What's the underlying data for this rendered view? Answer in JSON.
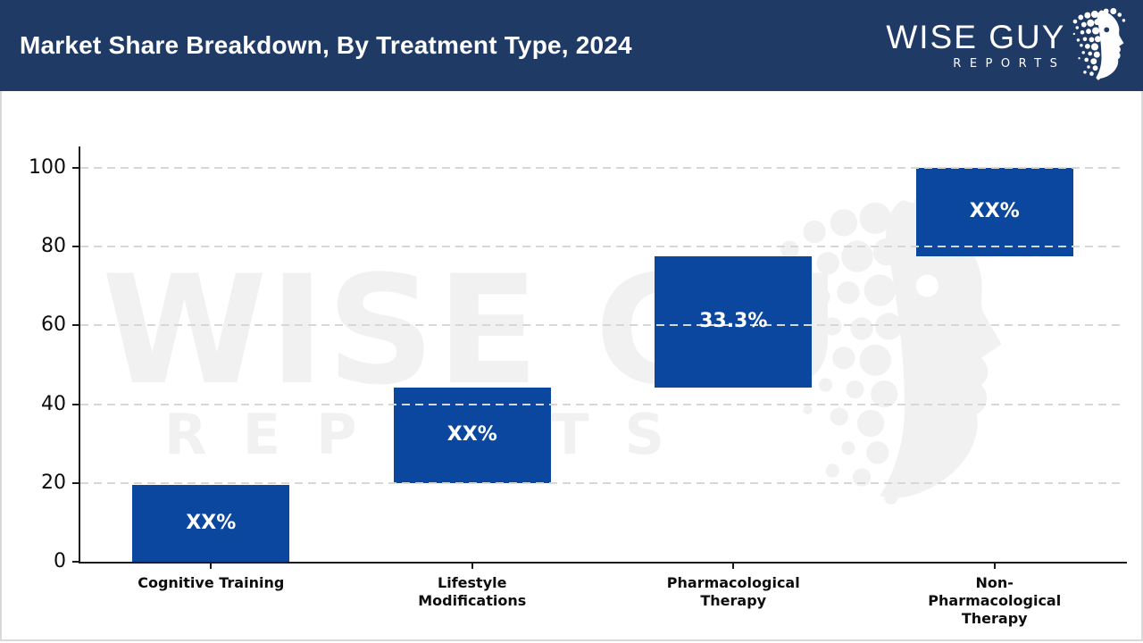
{
  "header": {
    "title": "Market Share Breakdown, By Treatment Type, 2024",
    "brand_line1": "WISE GUY",
    "brand_line2": "REPORTS"
  },
  "watermark": {
    "big": "WISE GU",
    "reports": "REPORTS"
  },
  "colors": {
    "header_bg": "#203a66",
    "bar": "#0b479e",
    "gridline": "#d7d7d7",
    "watermark": "#f1f1f2",
    "axis": "#1a1a1a"
  },
  "chart_data": {
    "type": "bar",
    "subtype": "floating-waterfall",
    "title": "Market Share Breakdown, By Treatment Type, 2024",
    "categories": [
      "Cognitive Training",
      "Lifestyle Modifications",
      "Pharmacological Therapy",
      "Non-Pharmacological Therapy"
    ],
    "category_lines": [
      [
        "Cognitive Training"
      ],
      [
        "Lifestyle",
        "Modifications"
      ],
      [
        "Pharmacological",
        "Therapy"
      ],
      [
        "Non-",
        "Pharmacological",
        "Therapy"
      ]
    ],
    "bars": [
      {
        "start": 0,
        "end": 19.5,
        "label": "XX%"
      },
      {
        "start": 20,
        "end": 44.3,
        "label": "XX%"
      },
      {
        "start": 44.3,
        "end": 77.6,
        "label": "33.3%"
      },
      {
        "start": 77.6,
        "end": 100,
        "label": "XX%"
      }
    ],
    "ylim": [
      0,
      100
    ],
    "yticks": [
      0,
      20,
      40,
      60,
      80,
      100
    ],
    "grid": "horizontal-dashed",
    "legend": "none",
    "xlabel": "",
    "ylabel": "",
    "bar_color": "#0b479e",
    "value_label_color": "#ffffff"
  }
}
